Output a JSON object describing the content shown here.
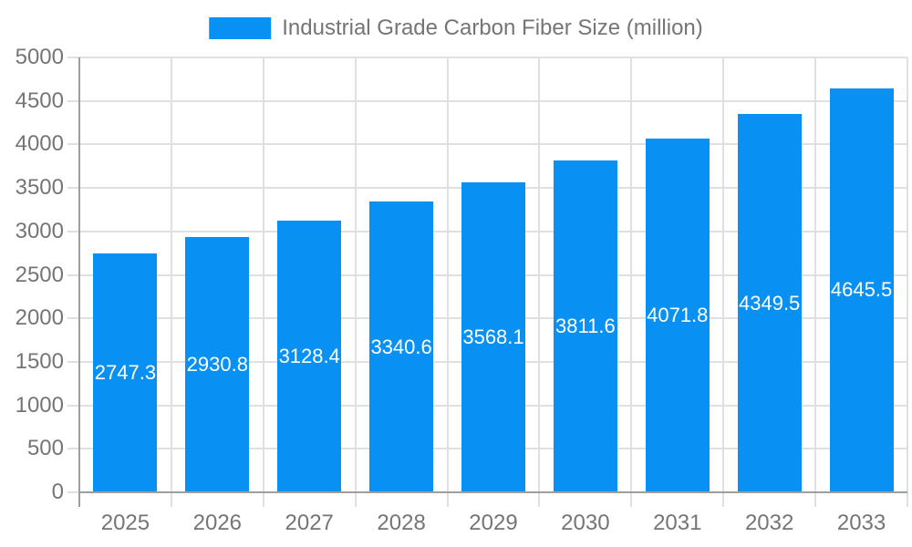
{
  "legend": {
    "label": "Industrial Grade Carbon Fiber Size (million)"
  },
  "colors": {
    "bar": "#0890f2",
    "bar_label_text": "#ffffff",
    "axis_text": "#757575",
    "grid": "#e0e0e0",
    "axis_line": "#9e9e9e",
    "background": "#ffffff"
  },
  "chart_data": {
    "type": "bar",
    "title": "",
    "legend_entries": [
      "Industrial Grade Carbon Fiber Size (million)"
    ],
    "legend_position": "top-center",
    "categories": [
      "2025",
      "2026",
      "2027",
      "2028",
      "2029",
      "2030",
      "2031",
      "2032",
      "2033"
    ],
    "values": [
      2747.3,
      2930.8,
      3128.4,
      3340.6,
      3568.1,
      3811.6,
      4071.8,
      4349.5,
      4645.5
    ],
    "value_labels": [
      "2747.3",
      "2930.8",
      "3128.4",
      "3340.6",
      "3568.1",
      "3811.6",
      "4071.8",
      "4349.5",
      "4645.5"
    ],
    "value_label_placement": "inside-center",
    "xlabel": "",
    "ylabel": "",
    "ylim": [
      0,
      5000
    ],
    "ytick_step": 500,
    "yticks": [
      0,
      500,
      1000,
      1500,
      2000,
      2500,
      3000,
      3500,
      4000,
      4500,
      5000
    ],
    "ytick_labels": [
      "0",
      "500",
      "1000",
      "1500",
      "2000",
      "2500",
      "3000",
      "3500",
      "4000",
      "4500",
      "5000"
    ],
    "grid": true
  }
}
